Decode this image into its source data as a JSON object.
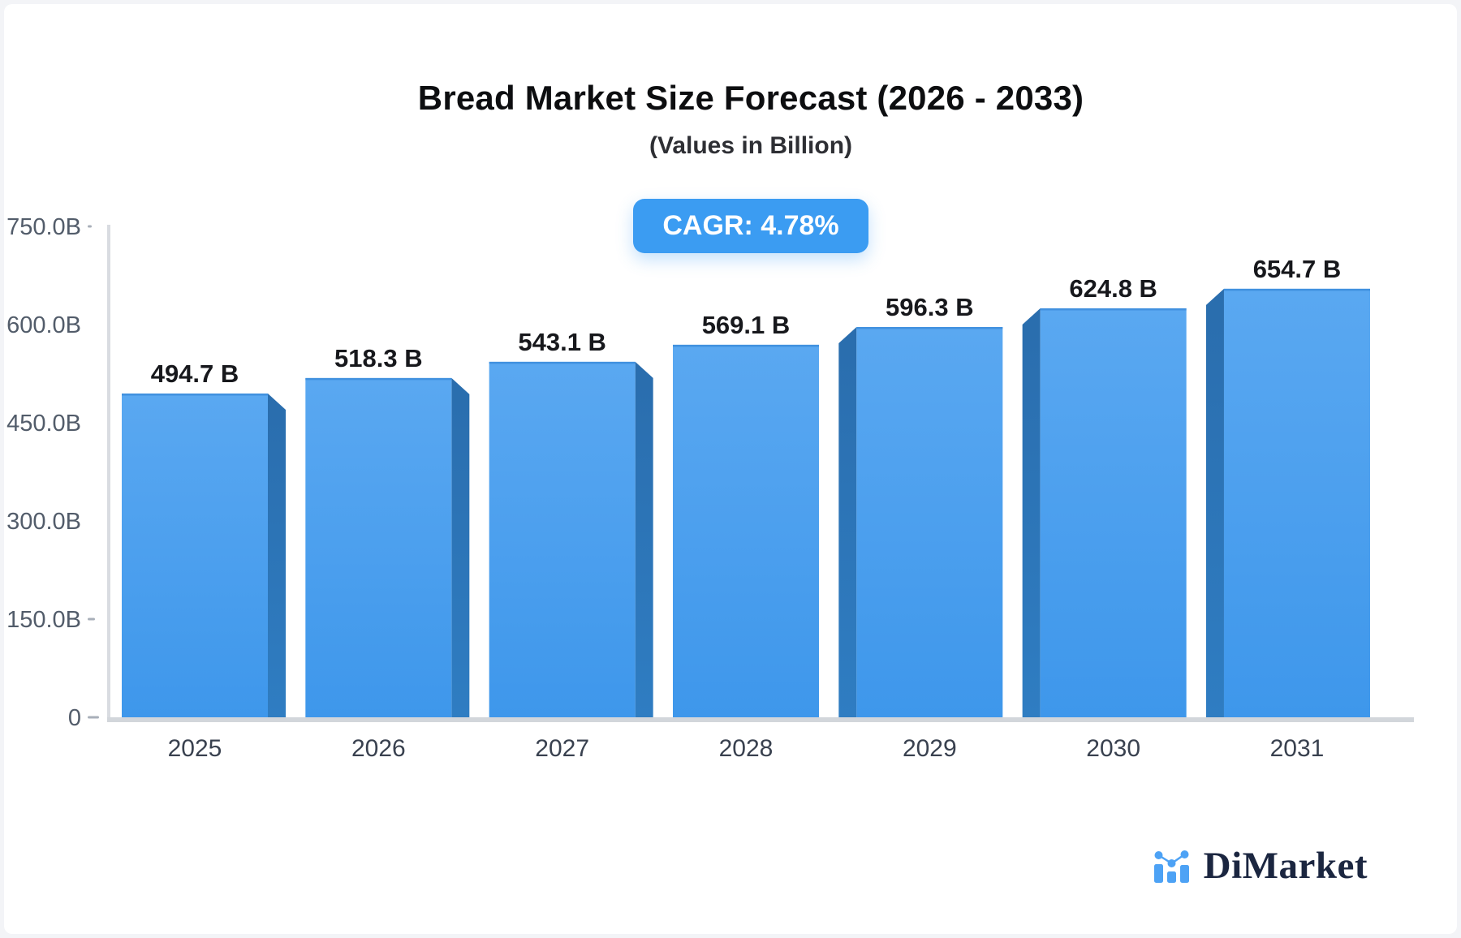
{
  "title": "Bread Market Size Forecast (2026 - 2033)",
  "subtitle": "(Values in Billion)",
  "cagr_badge": "CAGR: 4.78%",
  "brand": {
    "name": "DiMarket",
    "icon": "mini-bar-line-chart"
  },
  "colors": {
    "bar_face_top": "#5aa8f1",
    "bar_face_bottom": "#3e97eb",
    "bar_top_line": "#3d8edc",
    "bar_side": "#2e75b9",
    "badge_bg": "#3b9cf2",
    "axis_line": "#d9dce1",
    "baseline": "#d2d6db",
    "tick_dash": "#a8afb9",
    "y_label": "#525c6a",
    "x_label": "#39414f",
    "value_label": "#17181c",
    "logo_blue": "#4da2f5",
    "logo_navy": "#1b2640"
  },
  "chart_data": {
    "type": "bar",
    "title": "Bread Market Size Forecast (2026 - 2033)",
    "subtitle": "(Values in Billion)",
    "cagr": "4.78%",
    "categories": [
      "2025",
      "2026",
      "2027",
      "2028",
      "2029",
      "2030",
      "2031"
    ],
    "values": [
      494.7,
      518.3,
      543.1,
      569.1,
      596.3,
      624.8,
      654.7
    ],
    "value_labels": [
      "494.7 B",
      "518.3 B",
      "543.1 B",
      "569.1 B",
      "596.3 B",
      "624.8 B",
      "654.7 B"
    ],
    "xlabel": "",
    "ylabel": "",
    "ylim": [
      0,
      750
    ],
    "y_ticks": [
      "0",
      "150.0B",
      "300.0B",
      "450.0B",
      "600.0B",
      "750.0B"
    ],
    "grid": false,
    "legend": false,
    "bar_style": "3d-extruded, center-perspective (side face toward chart center)"
  }
}
